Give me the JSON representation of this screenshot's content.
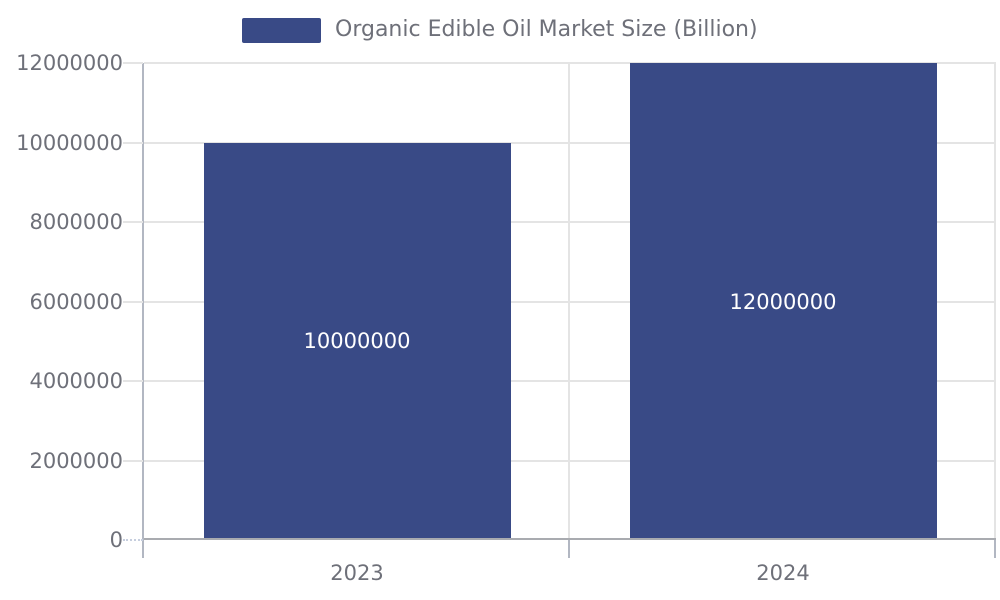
{
  "chart_data": {
    "type": "bar",
    "title": "",
    "legend": "Organic Edible Oil Market Size (Billion)",
    "legend_position": "top-center",
    "categories": [
      "2023",
      "2024"
    ],
    "series": [
      {
        "name": "Organic Edible Oil Market Size (Billion)",
        "values": [
          10000000,
          12000000
        ],
        "value_labels": [
          "10000000",
          "12000000"
        ]
      }
    ],
    "xlabel": "",
    "ylabel": "",
    "ylim": [
      0,
      12000000
    ],
    "yticks": [
      0,
      2000000,
      4000000,
      6000000,
      8000000,
      10000000,
      12000000
    ],
    "ytick_labels": [
      "0",
      "2000000",
      "4000000",
      "6000000",
      "8000000",
      "10000000",
      "12000000"
    ],
    "grid": true,
    "colors": {
      "bar": "#394A86",
      "bar_label_text": "#FFFFFF",
      "axis_label_text": "#6E7079",
      "legend_text": "#6E7079",
      "grid_line": "#E4E4E4",
      "y_axis_line": "#B2B7C2",
      "x_axis_line": "#A9ABB0",
      "zero_tick_dotted": "#C6CEDE",
      "background": "#FFFFFF"
    }
  }
}
